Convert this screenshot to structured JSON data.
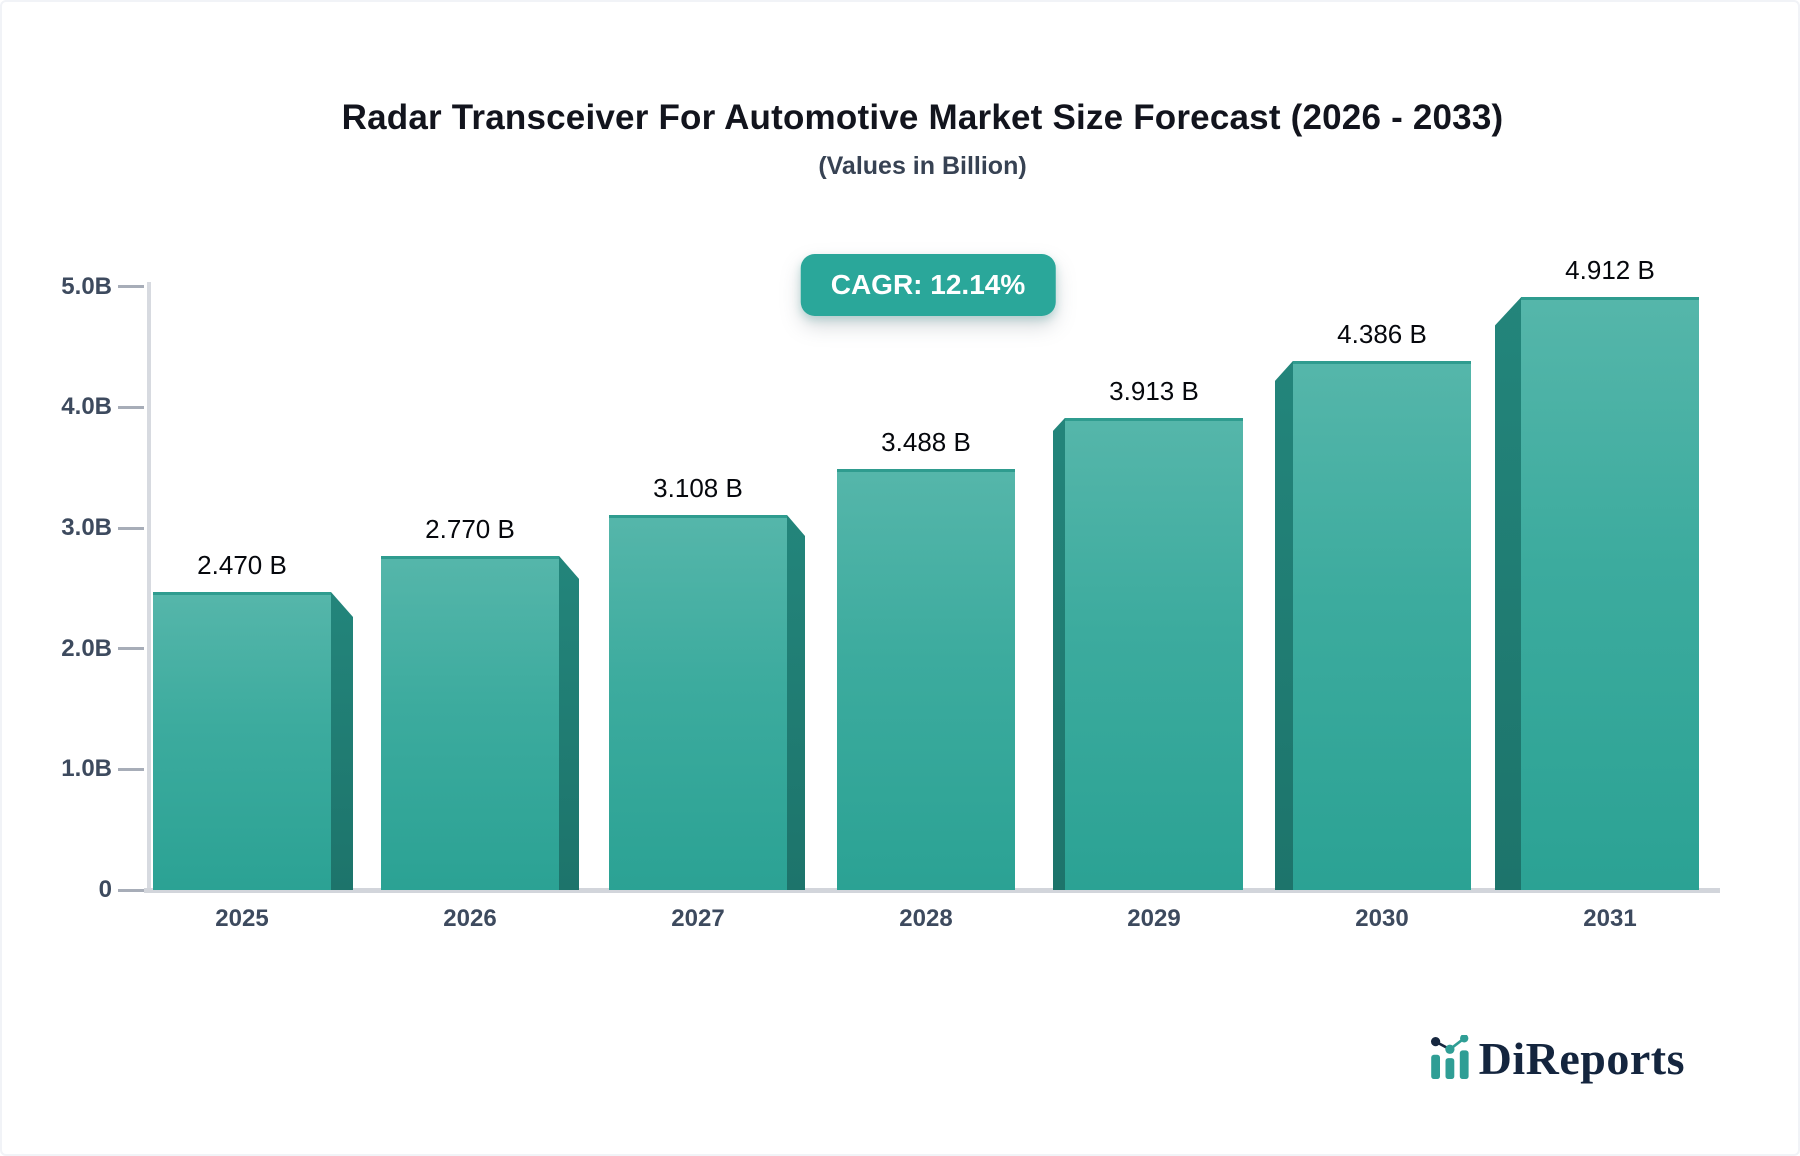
{
  "header": {
    "title": "Radar Transceiver For Automotive Market Size Forecast (2026 - 2033)",
    "subtitle": "(Values in Billion)",
    "cagr_badge": "CAGR: 12.14%"
  },
  "chart_data": {
    "type": "bar",
    "title": "Radar Transceiver For Automotive Market Size Forecast (2026 - 2033)",
    "subtitle": "(Values in Billion)",
    "categories": [
      "2025",
      "2026",
      "2027",
      "2028",
      "2029",
      "2030",
      "2031"
    ],
    "values": [
      2.47,
      2.77,
      3.108,
      3.488,
      3.913,
      4.386,
      4.912
    ],
    "bar_labels": [
      "2.470 B",
      "2.770 B",
      "3.108 B",
      "3.488 B",
      "3.913 B",
      "4.386 B",
      "4.912 B"
    ],
    "xlabel": "",
    "ylabel": "",
    "ylim": [
      0,
      5
    ],
    "y_ticks": [
      "0",
      "1.0B",
      "2.0B",
      "3.0B",
      "4.0B",
      "5.0B"
    ],
    "grid": false,
    "legend": false,
    "annotations": [
      "CAGR: 12.14%"
    ],
    "bar_color_top": "#55b6aa",
    "bar_color_bottom": "#2ba294",
    "bar_side_color": "#1d746b",
    "style": "3d-extruded-bars"
  },
  "footer": {
    "logo_text": "DiReports"
  },
  "colors": {
    "accent_teal": "#2aa79a",
    "title_text": "#12141d",
    "subtitle_text": "#374253",
    "axis_text": "#3d4a5e",
    "axis_line": "#d2d5db",
    "logo_navy": "#14253e",
    "logo_teal": "#2f9e95"
  }
}
